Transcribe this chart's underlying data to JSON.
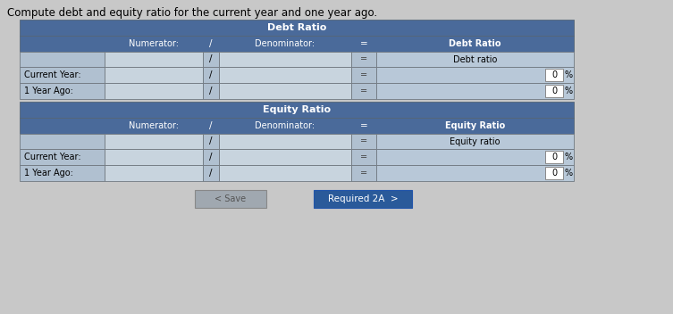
{
  "title": "Compute debt and equity ratio for the current year and one year ago.",
  "title_fontsize": 8.5,
  "background_color": "#c8c8c8",
  "header_blue": "#4a6a9a",
  "cell_light": "#b8c8d8",
  "cell_input": "#c8d4de",
  "cell_label": "#b0c0d0",
  "debt_ratio_title": "Debt Ratio",
  "equity_ratio_title": "Equity Ratio",
  "col_headers_debt": [
    "Numerator:",
    "/",
    "Denominator:",
    "=",
    "Debt Ratio"
  ],
  "col_headers_eq": [
    "Numerator:",
    "/",
    "Denominator:",
    "=",
    "Equity Ratio"
  ],
  "debt_ratio_label": "Debt ratio",
  "equity_ratio_label": "Equity ratio",
  "value_0": "0",
  "pct": "%",
  "button_color": "#2a5a9a",
  "button_text": "Required 2A  >",
  "save_text": "< Save",
  "save_bg": "#a0a8b0"
}
